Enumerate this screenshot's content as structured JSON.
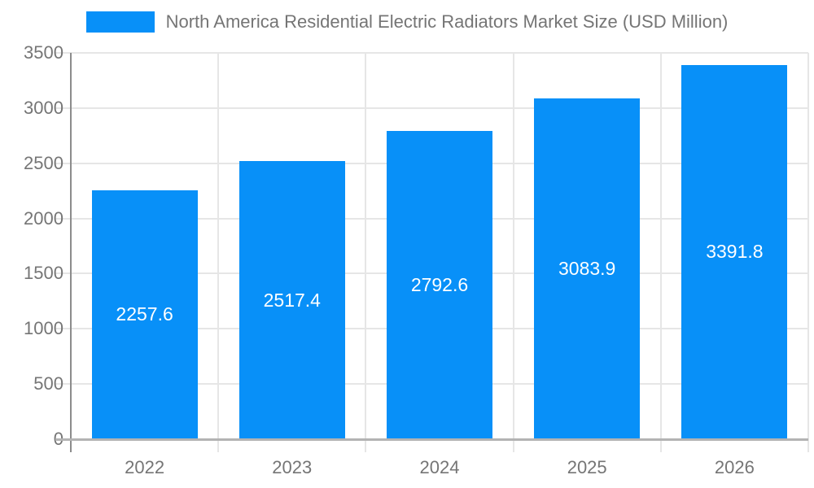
{
  "legend": {
    "label": "North America Residential Electric Radiators Market Size (USD Million)"
  },
  "chart_data": {
    "type": "bar",
    "title": "North America Residential Electric Radiators Market Size (USD Million)",
    "categories": [
      "2022",
      "2023",
      "2024",
      "2025",
      "2026"
    ],
    "values": [
      2257.6,
      2517.4,
      2792.6,
      3083.9,
      3391.8
    ],
    "value_labels": [
      "2257.6",
      "2517.4",
      "2792.6",
      "3083.9",
      "3391.8"
    ],
    "xlabel": "",
    "ylabel": "",
    "ylim": [
      0,
      3500
    ],
    "ytick_step": 500,
    "ytick_labels": [
      "0",
      "500",
      "1000",
      "1500",
      "2000",
      "2500",
      "3000",
      "3500"
    ],
    "grid": true,
    "legend_position": "top",
    "colors": {
      "bar": "#0890f8",
      "bar_value_text": "#ffffff",
      "axis_text": "#757575",
      "legend_text": "#757575",
      "gridline": "#e6e6e6",
      "baseline": "#b3b3b3",
      "axis_line": "#8c8c8c",
      "background": "#ffffff"
    }
  }
}
